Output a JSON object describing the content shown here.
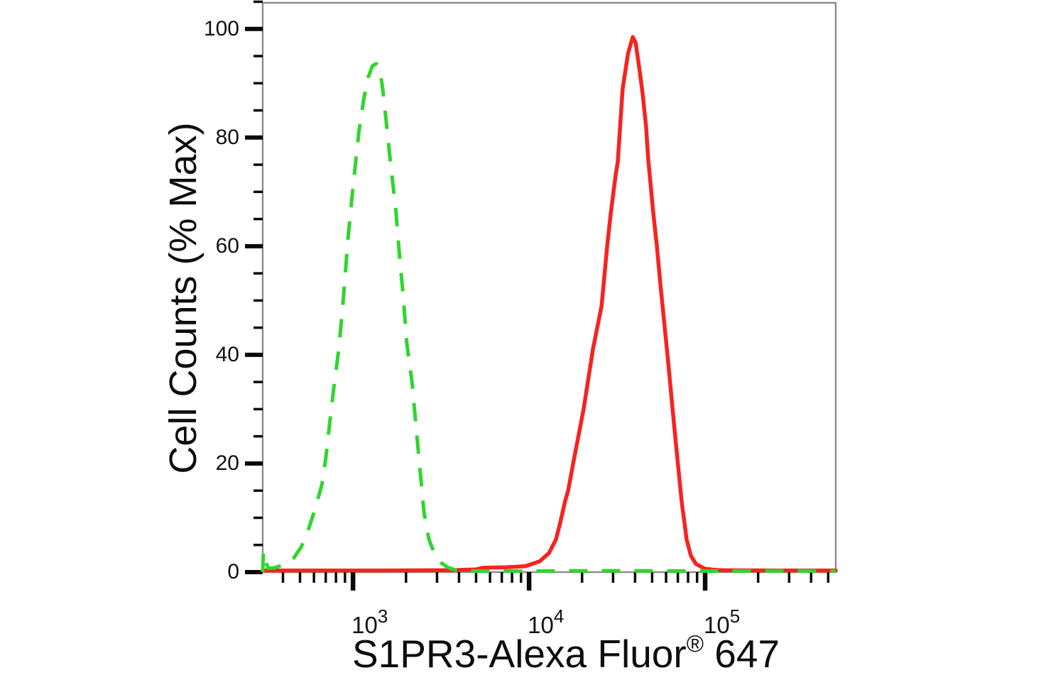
{
  "chart_data": {
    "type": "line",
    "subtype": "flow-cytometry-histogram",
    "title": "",
    "ylabel": "Cell Counts (% Max)",
    "xlabel": {
      "main": "S1PR3-Alexa Fluor",
      "registered_mark": "®",
      "suffix": " 647"
    },
    "x_scale": "log10",
    "xlim": [
      307,
      552000
    ],
    "ylim": [
      0,
      104.8
    ],
    "grid": false,
    "legend": "none",
    "y_major_ticks": [
      {
        "label": "100",
        "value": 100
      },
      {
        "label": "80",
        "value": 80
      },
      {
        "label": "60",
        "value": 60
      },
      {
        "label": "40",
        "value": 40
      },
      {
        "label": "20",
        "value": 20
      },
      {
        "label": "0",
        "value": 0
      }
    ],
    "y_minor_ticks": [
      5,
      10,
      15,
      25,
      30,
      35,
      45,
      50,
      55,
      65,
      70,
      75,
      85,
      90,
      95,
      105
    ],
    "x_major_ticks": [
      {
        "base": "10",
        "exp": "3",
        "value": 1000
      },
      {
        "base": "10",
        "exp": "4",
        "value": 10000
      },
      {
        "base": "10",
        "exp": "5",
        "value": 100000
      }
    ],
    "x_minor_ticks": [
      400,
      500,
      600,
      700,
      800,
      900,
      2000,
      3000,
      4000,
      5000,
      6000,
      7000,
      8000,
      9000,
      20000,
      30000,
      40000,
      50000,
      60000,
      70000,
      80000,
      90000,
      200000,
      300000,
      400000,
      500000
    ],
    "style": {
      "frame_color": "#8f8f8f",
      "tick_color": "#0a0a0a",
      "text_color": "#111111",
      "background": "#ffffff"
    },
    "series": [
      {
        "name": "solid-red-peak",
        "color": "#f5241f",
        "line_style": "solid",
        "line_width": 5.5,
        "peak_x": 38800,
        "peak_y": 98.5,
        "points": [
          [
            307,
            0.3
          ],
          [
            1500,
            0.3
          ],
          [
            3500,
            0.35
          ],
          [
            5000,
            0.5
          ],
          [
            5470,
            0.8
          ],
          [
            7500,
            0.9
          ],
          [
            9550,
            1.1
          ],
          [
            11500,
            2
          ],
          [
            12970,
            3.5
          ],
          [
            14200,
            6
          ],
          [
            15000,
            9
          ],
          [
            16000,
            13
          ],
          [
            16670,
            15
          ],
          [
            17800,
            20
          ],
          [
            18800,
            24
          ],
          [
            20400,
            30
          ],
          [
            23050,
            41
          ],
          [
            25800,
            49
          ],
          [
            27770,
            60
          ],
          [
            29100,
            66
          ],
          [
            31000,
            73
          ],
          [
            31900,
            75.5
          ],
          [
            34000,
            89
          ],
          [
            36500,
            95.5
          ],
          [
            38800,
            98.5
          ],
          [
            40270,
            97.5
          ],
          [
            42200,
            93
          ],
          [
            44200,
            88
          ],
          [
            46200,
            82
          ],
          [
            47500,
            76
          ],
          [
            50800,
            66
          ],
          [
            53200,
            60
          ],
          [
            55700,
            53
          ],
          [
            61100,
            40
          ],
          [
            65300,
            30
          ],
          [
            69000,
            22
          ],
          [
            73600,
            13
          ],
          [
            78500,
            6
          ],
          [
            83000,
            3
          ],
          [
            88700,
            1.5
          ],
          [
            100000,
            0.6
          ],
          [
            120000,
            0.35
          ],
          [
            250000,
            0.3
          ],
          [
            552000,
            0.3
          ]
        ]
      },
      {
        "name": "dashed-green-peak",
        "color": "#2ed62e",
        "line_style": "dashed",
        "line_width": 5,
        "dash_array": "26 20",
        "peak_x": 1358,
        "peak_y": 93.6,
        "points": [
          [
            307,
            0
          ],
          [
            310,
            3.8
          ],
          [
            316,
            2.2
          ],
          [
            330,
            0.7
          ],
          [
            360,
            0.8
          ],
          [
            420,
            1.6
          ],
          [
            458,
            2.5
          ],
          [
            505,
            4.5
          ],
          [
            547,
            7
          ],
          [
            600,
            11
          ],
          [
            665,
            16
          ],
          [
            700,
            21
          ],
          [
            729,
            26
          ],
          [
            778,
            34
          ],
          [
            830,
            41
          ],
          [
            879,
            50
          ],
          [
            940,
            62
          ],
          [
            1000,
            71
          ],
          [
            1080,
            81
          ],
          [
            1150,
            87
          ],
          [
            1216,
            91
          ],
          [
            1290,
            93.2
          ],
          [
            1358,
            93.6
          ],
          [
            1430,
            92
          ],
          [
            1480,
            88.5
          ],
          [
            1532,
            84
          ],
          [
            1637,
            75
          ],
          [
            1746,
            67
          ],
          [
            1850,
            57
          ],
          [
            1914,
            52
          ],
          [
            2023,
            42
          ],
          [
            2163,
            35
          ],
          [
            2307,
            25
          ],
          [
            2430,
            17
          ],
          [
            2529,
            11
          ],
          [
            2700,
            6
          ],
          [
            2938,
            3
          ],
          [
            3200,
            1.6
          ],
          [
            3436,
            0.9
          ],
          [
            3800,
            0.4
          ],
          [
            4500,
            0.2
          ],
          [
            10000,
            0.2
          ],
          [
            30000,
            0.25
          ],
          [
            100000,
            0.2
          ],
          [
            300000,
            0.25
          ],
          [
            552000,
            0.2
          ]
        ]
      }
    ]
  }
}
